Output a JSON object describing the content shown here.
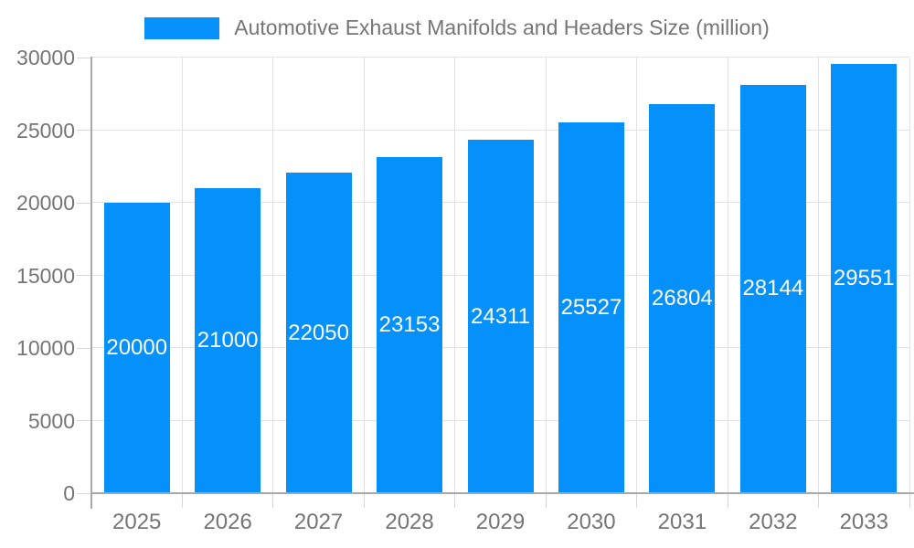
{
  "chart_data": {
    "type": "bar",
    "title": "Automotive Exhaust Manifolds and Headers Size (million)",
    "categories": [
      "2025",
      "2026",
      "2027",
      "2028",
      "2029",
      "2030",
      "2031",
      "2032",
      "2033"
    ],
    "values": [
      20000,
      21000,
      22050,
      23153,
      24311,
      25527,
      26804,
      28144,
      29551
    ],
    "bar_labels": [
      "20000",
      "21000",
      "22050",
      "23153",
      "24311",
      "25527",
      "26804",
      "28144",
      "29551"
    ],
    "xlabel": "",
    "ylabel": "",
    "ylim": [
      0,
      30000
    ],
    "yticks": [
      0,
      5000,
      10000,
      15000,
      20000,
      25000,
      30000
    ],
    "ytick_labels": [
      "0",
      "5000",
      "10000",
      "15000",
      "20000",
      "25000",
      "30000"
    ],
    "grid": true,
    "legend_position": "top-center",
    "bar_value_labels_inside": true
  },
  "legend": {
    "label": "Automotive Exhaust Manifolds and Headers Size (million)"
  },
  "colors": {
    "bar": "#0590fa",
    "bar_label": "#ffffff",
    "grid": "#e3e3e3",
    "tick": "#d6d6d6",
    "axis": "#a8a8a8",
    "text": "#757575",
    "background": "#ffffff"
  }
}
